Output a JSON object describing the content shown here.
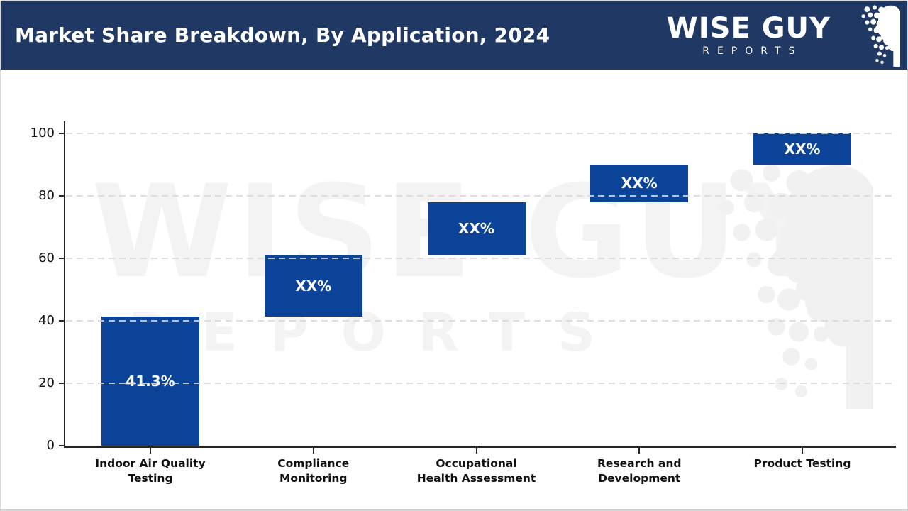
{
  "header": {
    "title": "Market Share Breakdown, By Application, 2024",
    "bg_color": "#1f3864",
    "logo": {
      "line1": "WISE GUY",
      "line2": "REPORTS"
    }
  },
  "watermark": {
    "line1": "WISE GUY",
    "line2": "REPORTS"
  },
  "chart_data": {
    "type": "bar",
    "subtype": "waterfall",
    "title": "Market Share Breakdown, By Application, 2024",
    "xlabel": "",
    "ylabel": "",
    "ylim": [
      0,
      100
    ],
    "yticks": [
      0,
      20,
      40,
      60,
      80,
      100
    ],
    "grid": "horizontal-dashed",
    "legend": "none",
    "bar_color": "#0b4399",
    "bar_label_color": "#ffffff",
    "categories": [
      "Indoor Air Quality\nTesting",
      "Compliance\nMonitoring",
      "Occupational\nHealth Assessment",
      "Research and\nDevelopment",
      "Product Testing"
    ],
    "segments": [
      {
        "category": "Indoor Air Quality Testing",
        "start": 0,
        "end": 41.3,
        "label": "41.3%"
      },
      {
        "category": "Compliance Monitoring",
        "start": 41.3,
        "end": 61,
        "label": "XX%"
      },
      {
        "category": "Occupational Health Assessment",
        "start": 61,
        "end": 78,
        "label": "XX%"
      },
      {
        "category": "Research and Development",
        "start": 78,
        "end": 90,
        "label": "XX%"
      },
      {
        "category": "Product Testing",
        "start": 90,
        "end": 100,
        "label": "XX%"
      }
    ]
  }
}
